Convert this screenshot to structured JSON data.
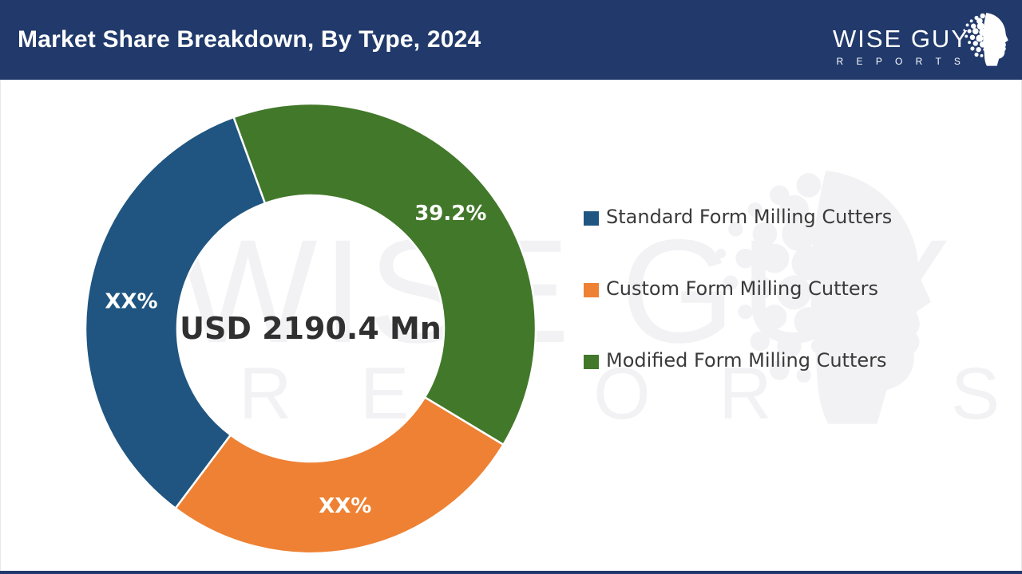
{
  "header": {
    "title": "Market Share Breakdown, By Type, 2024",
    "logo": {
      "line1": "WISE GUY",
      "line2": "R E P O R T S"
    }
  },
  "chart_data": {
    "type": "pie",
    "subtype": "donut",
    "title": "Market Share Breakdown, By Type, 2024",
    "center_label": "USD 2190.4 Mn",
    "start_angle_deg": -20,
    "legend_position": "right",
    "slices": [
      {
        "name": "Modified Form Milling Cutters",
        "display_label": "39.2%",
        "value": 39.2,
        "color": "#42782a"
      },
      {
        "name": "Custom Form Milling Cutters",
        "display_label": "XX%",
        "value": 26.6,
        "color": "#ee8133"
      },
      {
        "name": "Standard Form Milling Cutters",
        "display_label": "XX%",
        "value": 34.2,
        "color": "#1f5580"
      }
    ]
  },
  "legend": {
    "items": [
      {
        "label": "Standard Form Milling Cutters",
        "color": "#1f5580"
      },
      {
        "label": "Custom Form Milling Cutters",
        "color": "#ee8133"
      },
      {
        "label": "Modified Form Milling Cutters",
        "color": "#42782a"
      }
    ]
  },
  "watermark": {
    "line1": "WISE GUY",
    "line2": "R E P O R T S"
  },
  "colors": {
    "header_bg": "#213a6b",
    "slice_border": "#ffffff",
    "center_text": "#303030",
    "legend_text": "#3a3a3a",
    "watermark": "#f2f2f4"
  }
}
